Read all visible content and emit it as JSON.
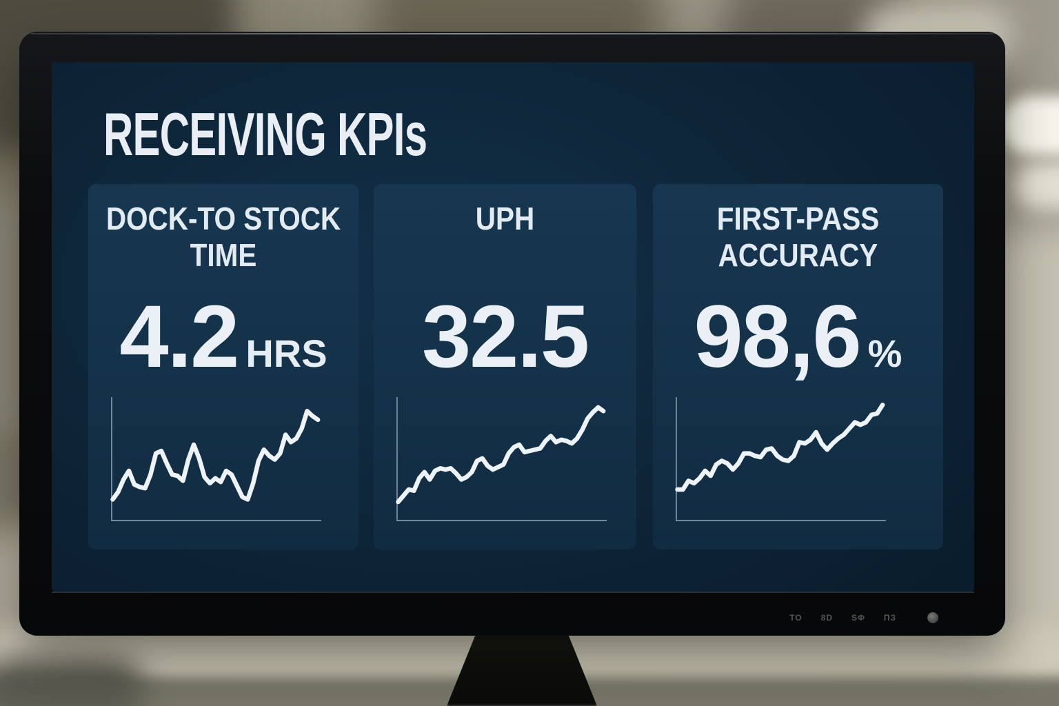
{
  "screen": {
    "title": "RECEIVING KPIs",
    "panels": [
      {
        "id": "dock-to-stock-time",
        "title_lines": [
          "DOCK-TO STOCK",
          "TIME"
        ],
        "value": "4.2",
        "unit": "HRS"
      },
      {
        "id": "uph",
        "title_lines": [
          "UPH",
          ""
        ],
        "value": "32.5",
        "unit": ""
      },
      {
        "id": "first-pass-accuracy",
        "title_lines": [
          "FIRST-PASS",
          "ACCURACY"
        ],
        "value": "98,6",
        "unit": "%"
      }
    ]
  },
  "chart_data": [
    {
      "type": "line",
      "panel": "DOCK-TO STOCK TIME",
      "title": "",
      "xlabel": "",
      "ylabel": "",
      "x": "unlabeled time axis, equal spacing",
      "value_scale": "relative height 0-100 (0 = baseline axis, 100 = top of plot box; no tick labels shown)",
      "values": [
        17,
        23,
        33,
        40,
        29,
        27,
        26,
        37,
        54,
        56,
        46,
        37,
        36,
        32,
        49,
        61,
        50,
        35,
        30,
        34,
        31,
        40,
        37,
        28,
        19,
        17,
        30,
        48,
        57,
        52,
        49,
        54,
        69,
        63,
        66,
        74,
        88,
        84,
        81
      ],
      "ylim": [
        0,
        100
      ],
      "grid": false,
      "legend": false
    },
    {
      "type": "line",
      "panel": "UPH",
      "title": "",
      "xlabel": "",
      "ylabel": "",
      "x": "unlabeled time axis, equal spacing",
      "value_scale": "relative height 0-100 (0 = baseline axis, 100 = top of plot box; no tick labels shown)",
      "values": [
        15,
        20,
        25,
        24,
        34,
        39,
        33,
        40,
        42,
        41,
        42,
        38,
        33,
        35,
        39,
        48,
        50,
        44,
        41,
        43,
        45,
        54,
        59,
        61,
        55,
        56,
        57,
        58,
        64,
        68,
        63,
        65,
        64,
        62,
        66,
        73,
        82,
        87,
        91,
        88
      ],
      "ylim": [
        0,
        100
      ],
      "grid": false,
      "legend": false
    },
    {
      "type": "line",
      "panel": "FIRST-PASS ACCURACY",
      "title": "",
      "xlabel": "",
      "ylabel": "",
      "x": "unlabeled time axis, equal spacing",
      "value_scale": "relative height 0-100 (0 = baseline axis, 100 = top of plot box; no tick labels shown)",
      "values": [
        25,
        25,
        32,
        30,
        34,
        40,
        36,
        45,
        48,
        46,
        41,
        46,
        54,
        54,
        52,
        51,
        57,
        58,
        52,
        49,
        48,
        52,
        63,
        62,
        65,
        71,
        62,
        57,
        62,
        66,
        69,
        74,
        79,
        77,
        79,
        85,
        86,
        93
      ],
      "ylim": [
        0,
        100
      ],
      "grid": false,
      "legend": false
    }
  ],
  "monitor": {
    "bezel_labels": [
      "TO",
      "8D",
      "SΦ",
      "ПЗ"
    ]
  },
  "colors": {
    "screen_bg": "#0e2436",
    "panel_bg": "#153450",
    "title_text": "#e8eef4",
    "value_text": "#eaf0f5",
    "spark_line": "#edf3f7",
    "spark_axis": "#93a9ba",
    "bezel": "#0b0c0e",
    "bezel_label": "#63635f"
  }
}
